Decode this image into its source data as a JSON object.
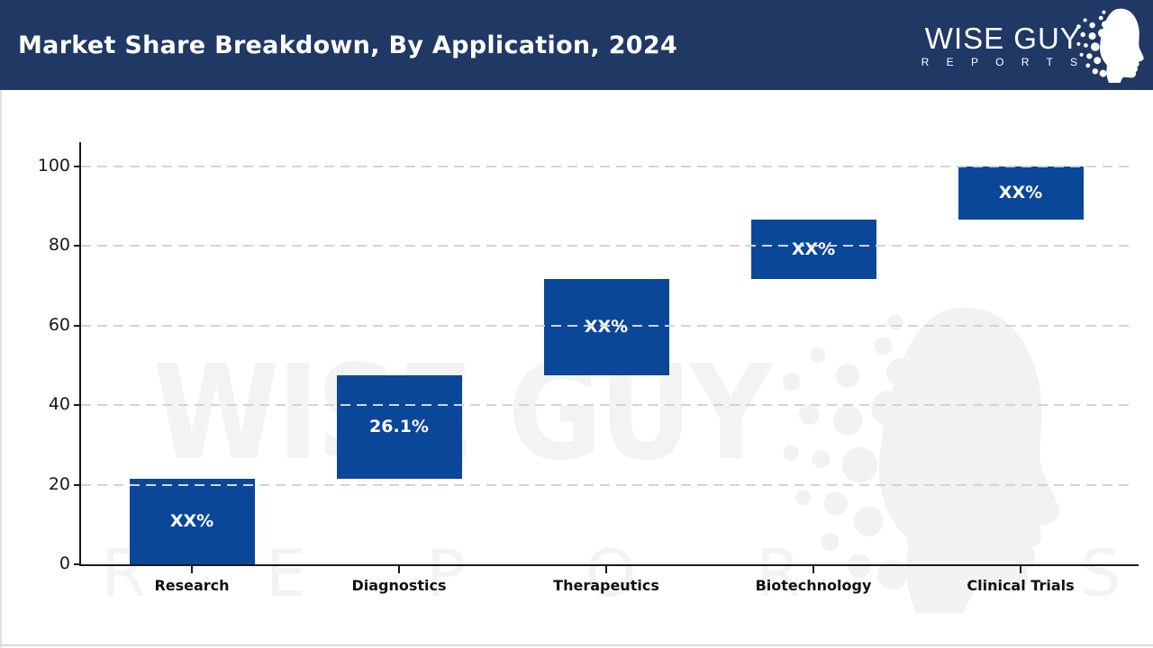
{
  "header": {
    "title": "Market Share Breakdown, By Application, 2024",
    "bg_color": "#203864",
    "logo": {
      "line1": "WISE GUY",
      "line2": "R E P O R T S"
    }
  },
  "watermark": {
    "line1": "WISE GUY",
    "line2": "R E P O R T S"
  },
  "chart_data": {
    "type": "bar",
    "subtype": "waterfall",
    "title": "Market Share Breakdown, By Application, 2024",
    "xlabel": "",
    "ylabel": "",
    "categories": [
      "Research",
      "Diagnostics",
      "Therapeutics",
      "Biotechnology",
      "Clinical Trials"
    ],
    "bars": [
      {
        "category": "Research",
        "label": "XX%",
        "start": 0,
        "end": 21.5
      },
      {
        "category": "Diagnostics",
        "label": "26.1%",
        "start": 21.5,
        "end": 47.6,
        "value": 26.1
      },
      {
        "category": "Therapeutics",
        "label": "XX%",
        "start": 47.6,
        "end": 71.7
      },
      {
        "category": "Biotechnology",
        "label": "XX%",
        "start": 71.7,
        "end": 86.7
      },
      {
        "category": "Clinical Trials",
        "label": "XX%",
        "start": 86.7,
        "end": 100
      }
    ],
    "yticks": [
      0,
      20,
      40,
      60,
      80,
      100
    ],
    "ylim": [
      0,
      105
    ],
    "grid": "horizontal-dashed",
    "legend": null,
    "bar_color": "#0b4799",
    "grid_color": "#d4d4d4",
    "axis_color": "#1a1a1a"
  }
}
